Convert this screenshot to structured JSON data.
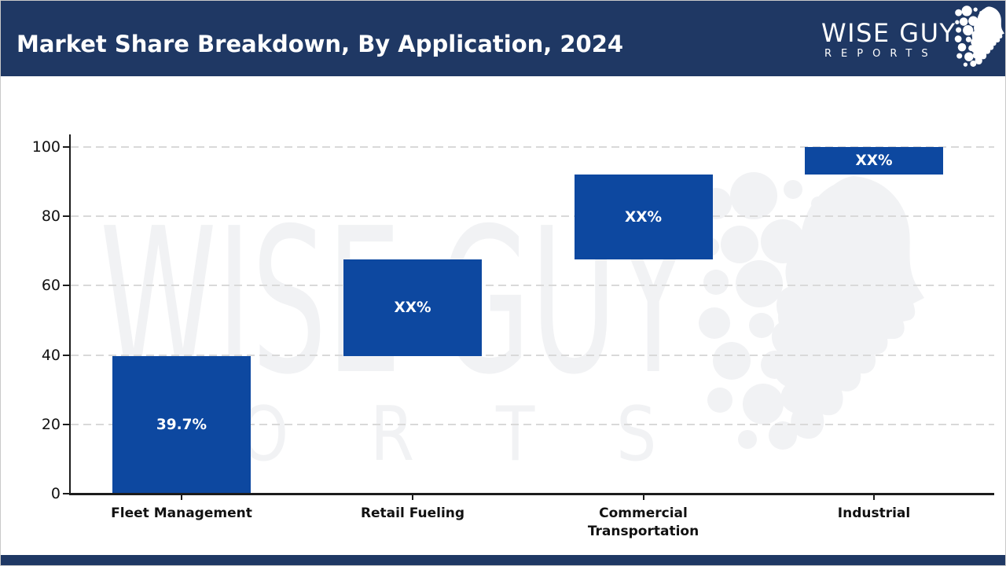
{
  "header": {
    "title": "Market Share Breakdown, By Application, 2024",
    "logo_line1": "WISE GUY",
    "logo_line2": "REPORTS"
  },
  "watermark": {
    "line1": "WISE GUY",
    "line2": "P O R T S"
  },
  "colors": {
    "header_bg": "#1f3864",
    "footer_bg": "#1f3864",
    "bar": "#0d48a0",
    "bar_label": "#ffffff",
    "grid": "#d9d9d9",
    "axis": "#1c1c1c",
    "watermark": "#f1f2f4"
  },
  "chart_data": {
    "type": "bar",
    "subtype": "waterfall",
    "title": "Market Share Breakdown, By Application, 2024",
    "xlabel": "",
    "ylabel": "",
    "categories": [
      "Fleet Management",
      "Retail Fueling",
      "Commercial\nTransportation",
      "Industrial"
    ],
    "segments": [
      {
        "category": "Fleet Management",
        "start": 0,
        "end": 39.7,
        "label": "39.7%"
      },
      {
        "category": "Retail Fueling",
        "start": 39.7,
        "end": 67.5,
        "label": "XX%"
      },
      {
        "category": "Commercial Transportation",
        "start": 67.5,
        "end": 92.1,
        "label": "XX%"
      },
      {
        "category": "Industrial",
        "start": 92.1,
        "end": 100,
        "label": "XX%"
      }
    ],
    "yticks": [
      0,
      20,
      40,
      60,
      80,
      100
    ],
    "ylim": [
      0,
      104
    ],
    "grid": "horizontal-dashed",
    "legend": "none"
  }
}
